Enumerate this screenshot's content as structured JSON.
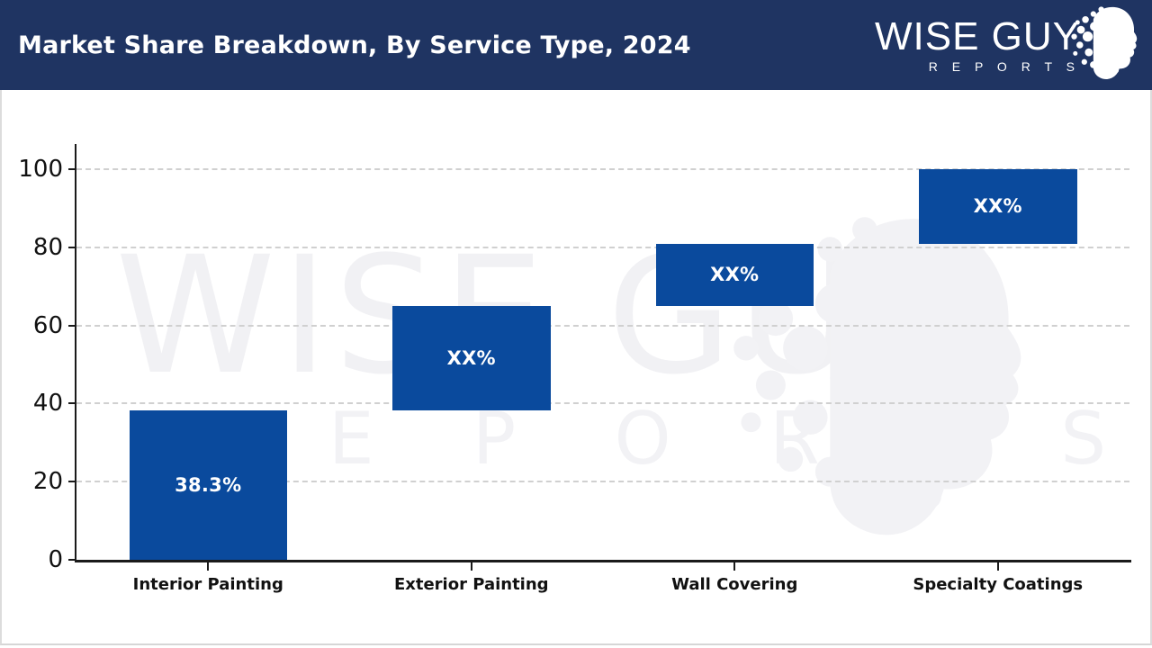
{
  "header": {
    "title": "Market Share Breakdown, By Service Type, 2024",
    "logo": {
      "line1": "WISE GUY",
      "line2": "R E P O R T S"
    }
  },
  "watermark": {
    "line1": "WISE GUY",
    "line2": "R E P O R T S"
  },
  "chart_data": {
    "type": "bar",
    "subtype": "waterfall",
    "title": "Market Share Breakdown, By Service Type, 2024",
    "categories": [
      "Interior Painting",
      "Exterior Painting",
      "Wall Covering",
      "Specialty Coatings"
    ],
    "segments": [
      {
        "category": "Interior Painting",
        "start": 0,
        "end": 38.3,
        "label": "38.3%"
      },
      {
        "category": "Exterior Painting",
        "start": 38.3,
        "end": 65,
        "label": "XX%"
      },
      {
        "category": "Wall Covering",
        "start": 65,
        "end": 81,
        "label": "XX%"
      },
      {
        "category": "Specialty Coatings",
        "start": 81,
        "end": 100,
        "label": "XX%"
      }
    ],
    "yticks": [
      0,
      20,
      40,
      60,
      80,
      100
    ],
    "ylim": [
      0,
      106
    ],
    "xlabel": "",
    "ylabel": "",
    "grid": "dashed-horizontal",
    "legend": "none",
    "bar_width_frac": 0.6,
    "bar_color": "#0a4a9d",
    "bar_label_color": "#ffffff"
  },
  "colors": {
    "header_bg": "#1f3462",
    "bar": "#0a4a9d",
    "grid": "#d0d0d0",
    "axis": "#1a1a1a",
    "watermark": "#f1f1f4",
    "border": "#dcdcdc"
  }
}
